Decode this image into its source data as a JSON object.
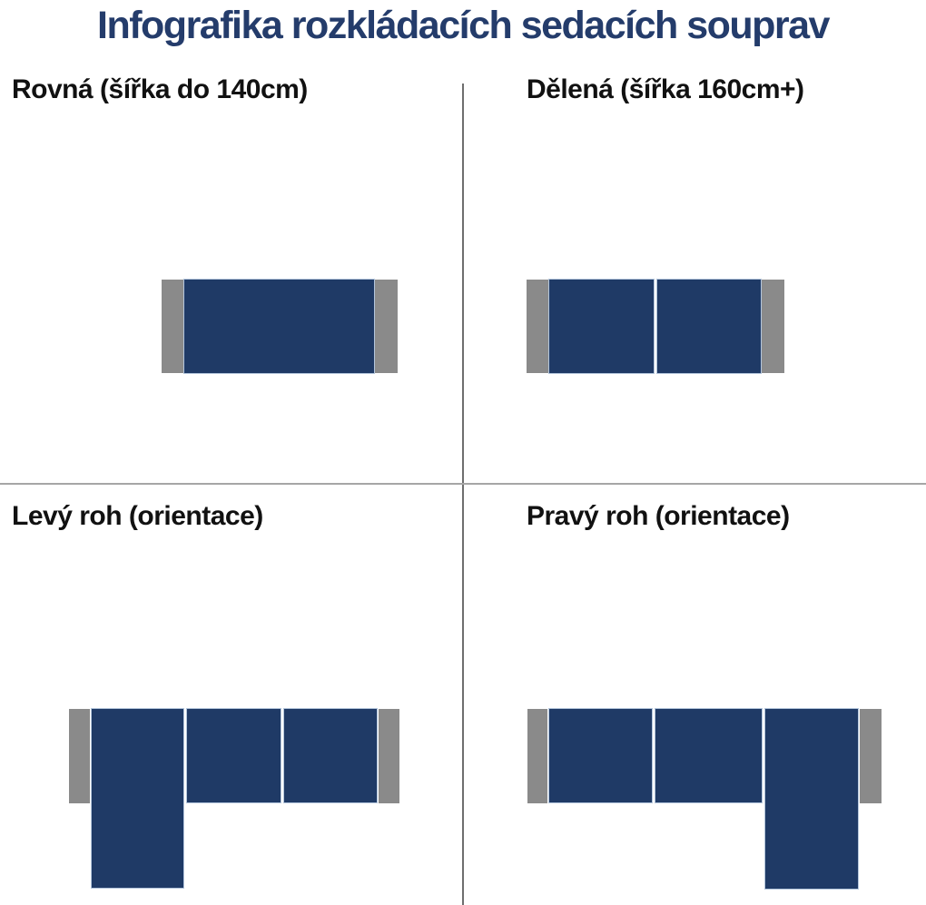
{
  "title": "Infografika rozkládacích sedacích souprav",
  "quadrants": {
    "rovna": {
      "label": "Rovná (šířka do 140cm)"
    },
    "delena": {
      "label": "Dělená (šířka 160cm+)"
    },
    "levy": {
      "label": "Levý roh (orientace)"
    },
    "pravy": {
      "label": "Pravý roh (orientace)"
    }
  },
  "colors": {
    "background": "#ffffff",
    "title_text": "#243c6b",
    "label_text": "#111111",
    "sofa_body": "#1f3a66",
    "sofa_body_edge": "#b4c6dc",
    "sofa_armrest": "#8a8a8a",
    "divider_v": "#6e6e6e",
    "divider_h": "#a6a6a6"
  }
}
